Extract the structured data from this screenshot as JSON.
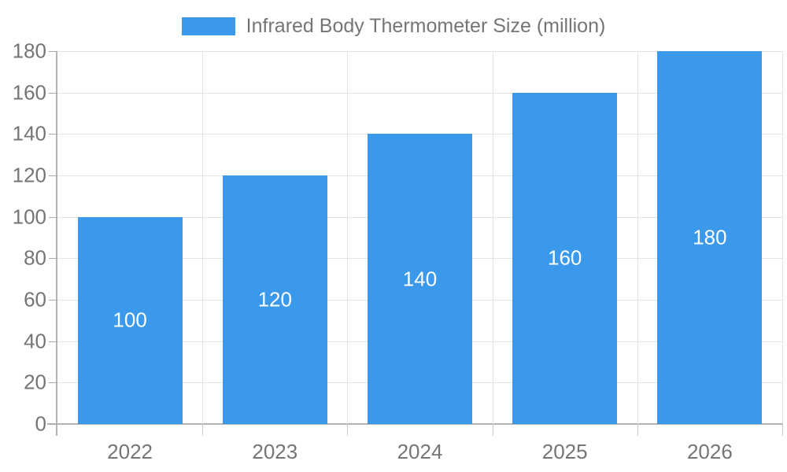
{
  "legend": {
    "label": "Infrared Body Thermometer Size (million)"
  },
  "chart_data": {
    "type": "bar",
    "title": "Infrared Body Thermometer Size (million)",
    "series_name": "Infrared Body Thermometer Size (million)",
    "categories": [
      "2022",
      "2023",
      "2024",
      "2025",
      "2026"
    ],
    "values": [
      100,
      120,
      140,
      160,
      180
    ],
    "data_labels": [
      "100",
      "120",
      "140",
      "160",
      "180"
    ],
    "yticks": [
      0,
      20,
      40,
      60,
      80,
      100,
      120,
      140,
      160,
      180
    ],
    "ylim": [
      0,
      180
    ],
    "xlabel": "",
    "ylabel": "",
    "grid": true,
    "legend_position": "top-center",
    "colors": {
      "bar": "#3b99ec",
      "bar_label_text": "#ffffff",
      "axis_text": "#757575",
      "axis_line": "#b3b3b3",
      "gridline": "#e4e4e4",
      "background": "#ffffff"
    }
  }
}
